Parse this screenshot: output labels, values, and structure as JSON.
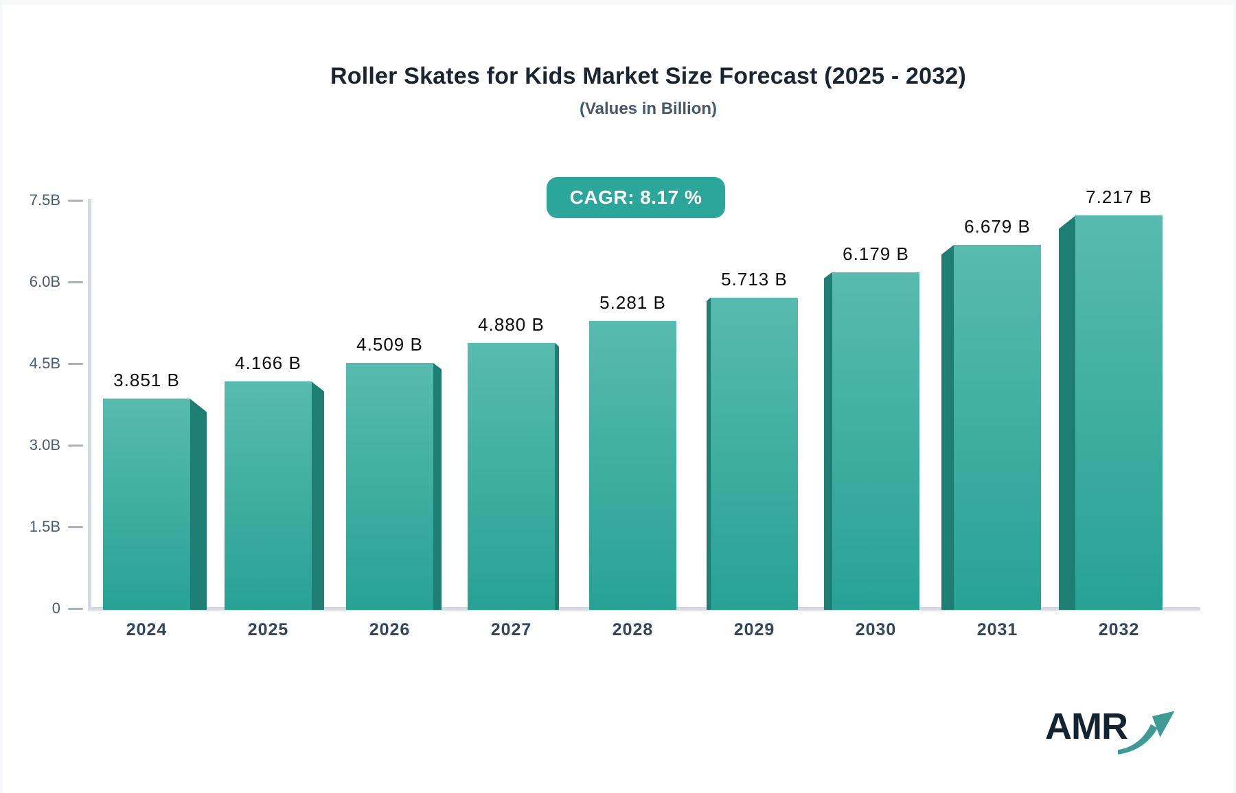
{
  "header": {
    "title": "Roller Skates for Kids Market Size Forecast (2025 - 2032)",
    "subtitle": "(Values in Billion)",
    "cagr_badge": "CAGR: 8.17 %"
  },
  "branding": {
    "logo_text": "AMR",
    "logo_text_color": "#142330",
    "arrow_color": "#3d9b93"
  },
  "chart_data": {
    "type": "bar",
    "title": "Roller Skates for Kids Market Size Forecast (2025 - 2032)",
    "subtitle": "(Values in Billion)",
    "badge": "CAGR: 8.17 %",
    "categories": [
      "2024",
      "2025",
      "2026",
      "2027",
      "2028",
      "2029",
      "2030",
      "2031",
      "2032"
    ],
    "values": [
      3.851,
      4.166,
      4.509,
      4.88,
      5.281,
      5.713,
      6.179,
      6.679,
      7.217
    ],
    "value_labels": [
      "3.851 B",
      "4.166 B",
      "4.509 B",
      "4.880 B",
      "5.281 B",
      "5.713 B",
      "6.179 B",
      "6.679 B",
      "7.217 B"
    ],
    "xlabel": "",
    "ylabel": "",
    "ylim": [
      0,
      7.5
    ],
    "yticks": [
      {
        "label": "7.5B",
        "value": 7.5
      },
      {
        "label": "6.0B",
        "value": 6.0
      },
      {
        "label": "4.5B",
        "value": 4.5
      },
      {
        "label": "3.0B",
        "value": 3.0
      },
      {
        "label": "1.5B",
        "value": 1.5
      },
      {
        "label": "0",
        "value": 0
      }
    ],
    "grid": false,
    "legend": "none",
    "style": "3d-extruded-bars-central-perspective",
    "colors": {
      "bar_gradient_top": "#58bbaf",
      "bar_gradient_bottom": "#27a295",
      "bar_side": "#1e7e73",
      "badge_bg": "#2aa69b",
      "badge_text": "#ffffff",
      "axis_line": "#d6d9df",
      "tick_dash": "#a9b0ba",
      "tick_label": "#4a5a6e",
      "year_label": "#33455a",
      "value_label": "#0d0d0d",
      "title": "#1b2531",
      "subtitle": "#46586b"
    }
  }
}
